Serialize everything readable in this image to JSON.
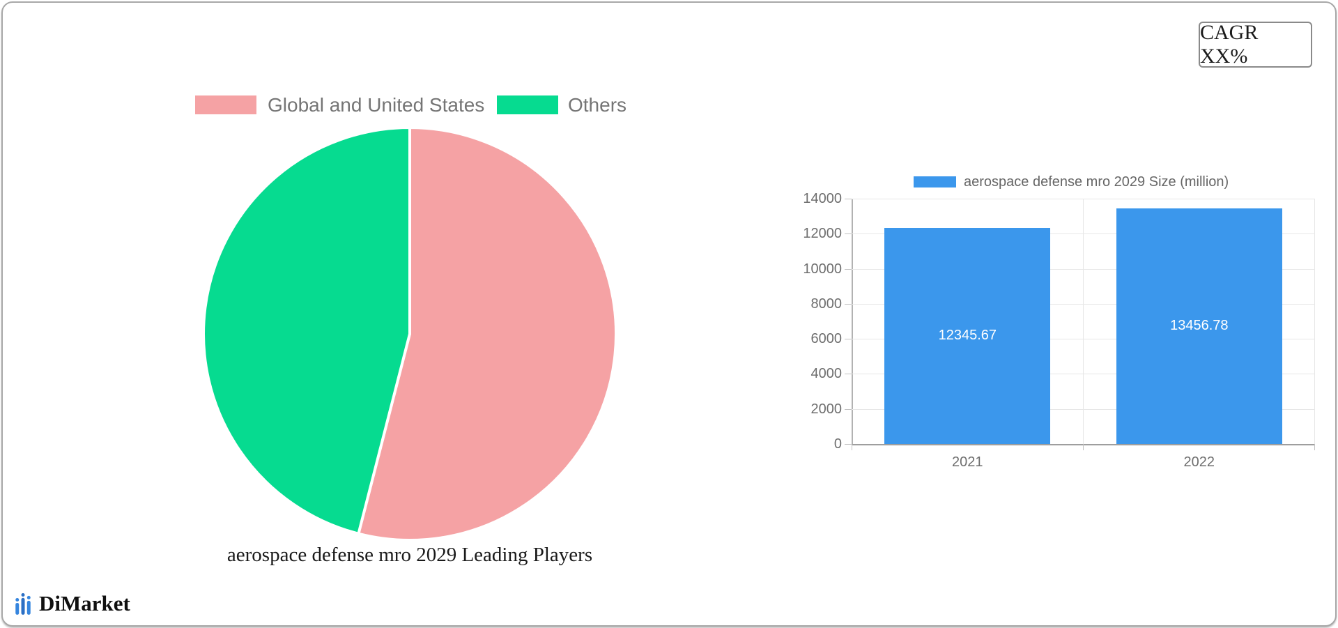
{
  "cagr_badge": {
    "label": "CAGR XX%"
  },
  "footer": {
    "brand": "DiMarket"
  },
  "colors": {
    "pie_pink": "#F5A2A4",
    "pie_green": "#06DB90",
    "bar_blue": "#3B97EC",
    "pie_legend_text": "#757575",
    "bar_legend_text": "#666666",
    "axis_text": "#6E6E6E",
    "grid_line": "#E7E7E7",
    "axis_line": "#B2B2B2",
    "logo_blue": "#3585DE"
  },
  "chart_data": [
    {
      "type": "pie",
      "title": "aerospace defense mro 2029 Leading Players",
      "labels": [
        "Global and United States",
        "Others"
      ],
      "values": [
        54,
        46
      ],
      "colors": [
        "#F5A2A4",
        "#06DB90"
      ],
      "legend_position": "top",
      "start_angle_deg": 0,
      "direction": "clockwise"
    },
    {
      "type": "bar",
      "legend": "aerospace defense mro 2029 Size (million)",
      "categories": [
        "2021",
        "2022"
      ],
      "values": [
        12345.67,
        13456.78
      ],
      "value_labels": [
        "12345.67",
        "13456.78"
      ],
      "y_ticks": [
        0,
        2000,
        4000,
        6000,
        8000,
        10000,
        12000,
        14000
      ],
      "ylim": [
        0,
        14000
      ],
      "bar_color": "#3B97EC",
      "grid": true,
      "legend_position": "top",
      "value_label_position": "center-of-bar",
      "value_label_color": "#FFFFFF"
    }
  ]
}
